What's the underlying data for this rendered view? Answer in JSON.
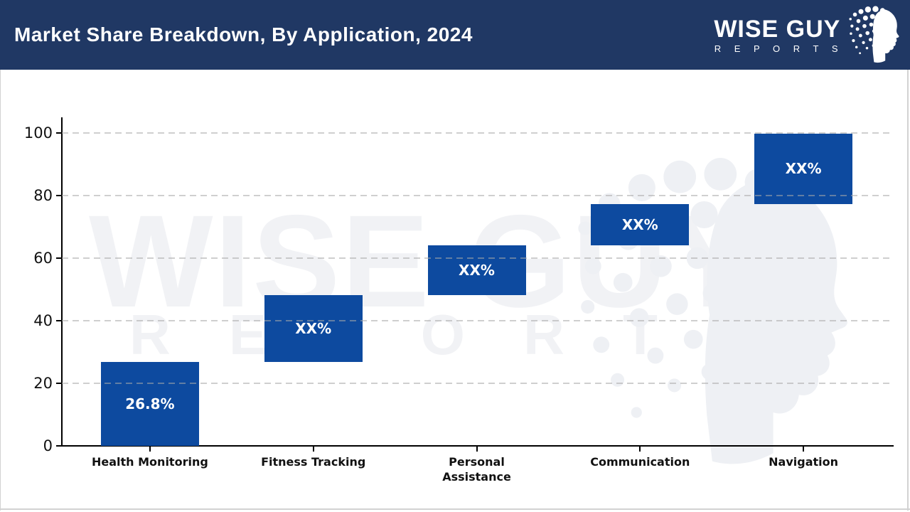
{
  "header": {
    "title": "Market Share Breakdown, By Application, 2024",
    "logo": {
      "name": "WISE GUY",
      "tagline": "R E P O R T S",
      "face_icon": "dotted-face-profile-icon"
    }
  },
  "watermark": {
    "big_text": "WISE GUY",
    "small_text": "R E P O R T S",
    "face_icon": "dotted-face-profile-watermark"
  },
  "colors": {
    "header_bg": "#203864",
    "bar_blue": "#0d4a9f",
    "grid_line": "#d9d9d9",
    "axis_black": "#000000",
    "bar_label_white": "#ffffff",
    "tick_text": "#111111",
    "watermark_gray": "#f1f2f5"
  },
  "chart_data": {
    "type": "bar",
    "subtype": "waterfall",
    "title": "Market Share Breakdown, By Application, 2024",
    "categories": [
      "Health Monitoring",
      "Fitness Tracking",
      "Personal\nAssistance",
      "Communication",
      "Navigation"
    ],
    "segments": [
      {
        "category": "Health Monitoring",
        "start": 0,
        "end": 26.8,
        "label": "26.8%"
      },
      {
        "category": "Fitness Tracking",
        "start": 26.8,
        "end": 48.2,
        "label": "XX%"
      },
      {
        "category": "Personal Assistance",
        "start": 48.2,
        "end": 64.1,
        "label": "XX%"
      },
      {
        "category": "Communication",
        "start": 64.1,
        "end": 77.3,
        "label": "XX%"
      },
      {
        "category": "Navigation",
        "start": 77.3,
        "end": 99.8,
        "label": "XX%"
      }
    ],
    "yticks": [
      0,
      20,
      40,
      60,
      80,
      100
    ],
    "ylim": [
      0,
      105
    ],
    "xlabel": "",
    "ylabel": "",
    "grid": "horizontal-dashed",
    "legend": "none",
    "bar_color": "#0d4a9f"
  }
}
